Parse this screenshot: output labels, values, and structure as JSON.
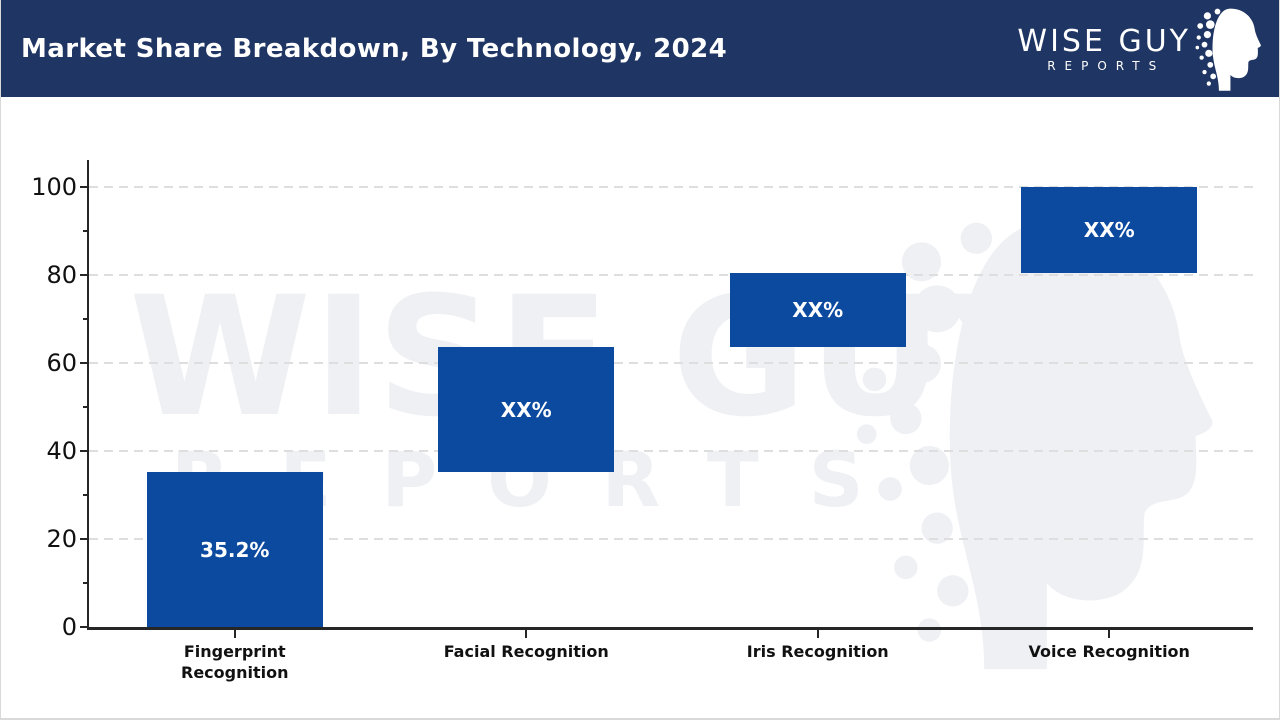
{
  "header": {
    "title": "Market Share Breakdown, By Technology, 2024",
    "logo": {
      "line1": "WISE GUY",
      "line2": "REPORTS"
    }
  },
  "watermark": {
    "line1": "WISE GUY",
    "line2": "REPORTS"
  },
  "colors": {
    "header_bg": "#1f3563",
    "bar": "#0c4aa0",
    "gridline": "#dedede",
    "axis": "#262626",
    "watermark": "#eef0f4",
    "bar_label_text": "#ffffff",
    "tick_text": "#111111"
  },
  "chart_data": {
    "type": "bar",
    "subtype": "waterfall",
    "title": "Market Share Breakdown, By Technology, 2024",
    "xlabel": "",
    "ylabel": "",
    "ylim": [
      0,
      100
    ],
    "yticks": [
      0,
      20,
      40,
      60,
      80,
      100
    ],
    "minor_yticks": [
      10,
      30,
      50,
      70,
      90
    ],
    "grid": "horizontal-dashed",
    "legend": "none",
    "categories": [
      "Fingerprint Recognition",
      "Facial Recognition",
      "Iris Recognition",
      "Voice Recognition"
    ],
    "series": [
      {
        "category": "Fingerprint\nRecognition",
        "start": 0,
        "end": 35.2,
        "label": "35.2%"
      },
      {
        "category": "Facial Recognition",
        "start": 35.2,
        "end": 63.6,
        "label": "XX%"
      },
      {
        "category": "Iris Recognition",
        "start": 63.6,
        "end": 80.5,
        "label": "XX%"
      },
      {
        "category": "Voice Recognition",
        "start": 80.5,
        "end": 100,
        "label": "XX%"
      }
    ]
  }
}
